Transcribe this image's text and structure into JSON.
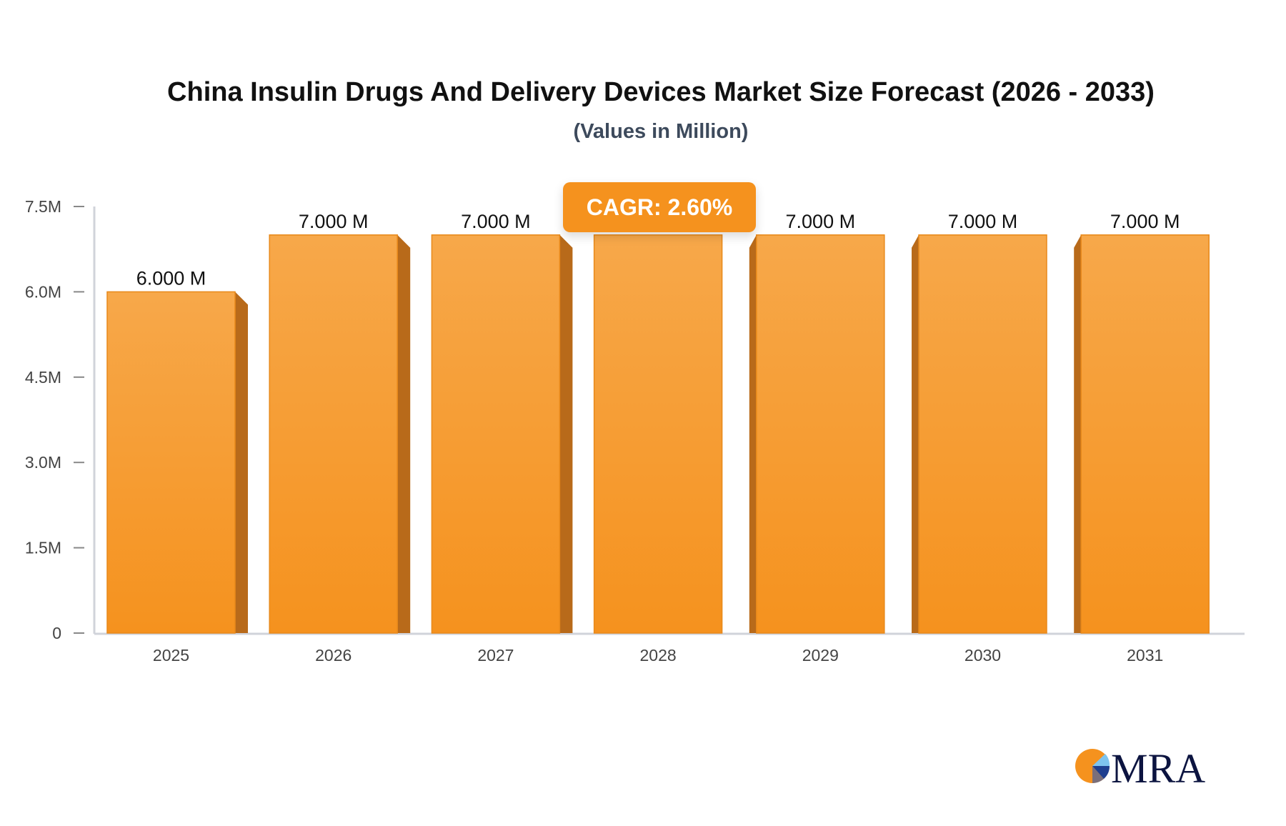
{
  "chart_data": {
    "type": "bar",
    "title": "China Insulin Drugs And Delivery Devices Market Size Forecast (2026 - 2033)",
    "subtitle": "(Values in Million)",
    "categories": [
      "2025",
      "2026",
      "2027",
      "2028",
      "2029",
      "2030",
      "2031"
    ],
    "values": [
      6.0,
      7.0,
      7.0,
      7.0,
      7.0,
      7.0,
      7.0
    ],
    "data_labels": [
      "6.000 M",
      "7.000 M",
      "7.000 M",
      null,
      "7.000 M",
      "7.000 M",
      "7.000 M"
    ],
    "yticks": [
      "0",
      "1.5M",
      "3.0M",
      "4.5M",
      "6.0M",
      "7.5M"
    ],
    "ytick_values": [
      0,
      1.5,
      3,
      4.5,
      6,
      7.5
    ],
    "ylim": [
      0,
      7.5
    ],
    "xlabel": "",
    "ylabel": "",
    "grid": false,
    "annotation": "CAGR: 2.60%",
    "colors": {
      "bar_top": "#f7a84a",
      "bar_bottom": "#f5921e",
      "bar_side": "#b86a1a",
      "axis": "#d0d3da"
    }
  },
  "logo": {
    "text": "MRA"
  }
}
